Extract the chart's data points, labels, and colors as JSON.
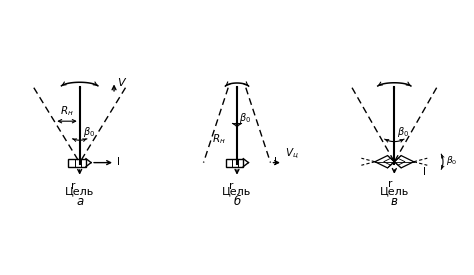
{
  "bg_color": "#ffffff",
  "title_a": "а",
  "title_b": "б",
  "title_c": "в",
  "label_tsel": "Цель",
  "label_V": "V",
  "label_Vc": "Vц",
  "label_Rn": "Rн",
  "label_beta": "β₀",
  "label_r": "r",
  "label_l": "l"
}
